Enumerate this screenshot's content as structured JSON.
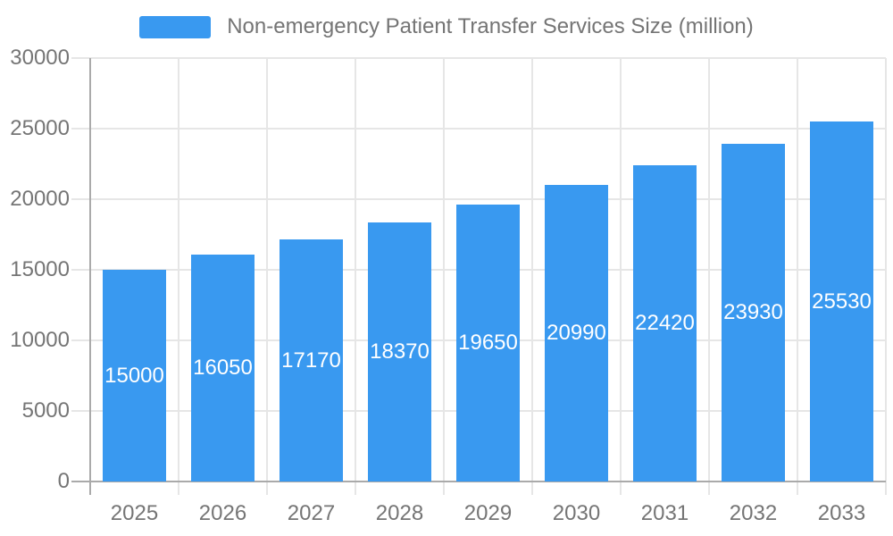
{
  "chart_data": {
    "type": "bar",
    "title": "Non-emergency Patient Transfer Services Size (million)",
    "categories": [
      "2025",
      "2026",
      "2027",
      "2028",
      "2029",
      "2030",
      "2031",
      "2032",
      "2033"
    ],
    "series": [
      {
        "name": "Non-emergency Patient Transfer Services Size (million)",
        "values": [
          15000,
          16050,
          17170,
          18370,
          19650,
          20990,
          22420,
          23930,
          25530
        ]
      }
    ],
    "xlabel": "",
    "ylabel": "",
    "ylim": [
      0,
      30000
    ],
    "yticks": [
      0,
      5000,
      10000,
      15000,
      20000,
      25000,
      30000
    ],
    "grid": true,
    "legend_position": "top-center",
    "value_label_position": "inside-center",
    "colors": {
      "bar": "#3999F0",
      "grid_line": "#E6E6E6",
      "axis_line": "#AAAAAA",
      "text": "#757575",
      "value_label": "#FFFFFF",
      "background": "#FFFFFF"
    }
  }
}
